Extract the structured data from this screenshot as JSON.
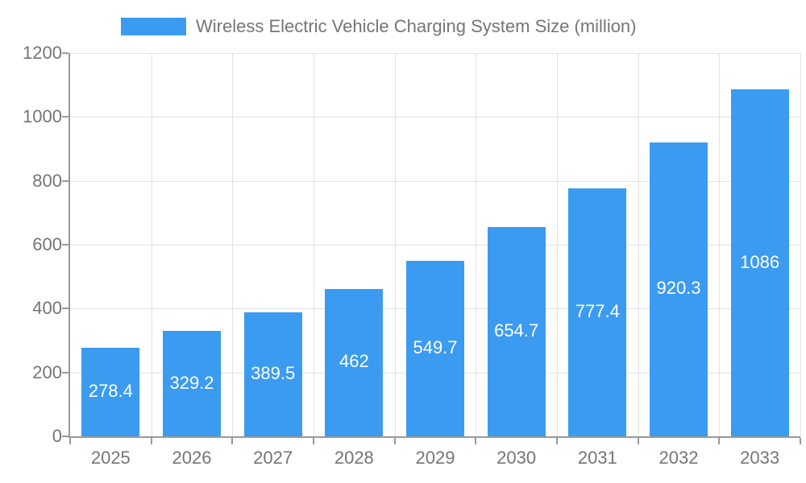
{
  "chart_data": {
    "type": "bar",
    "title": "Wireless Electric Vehicle Charging System Size (million)",
    "categories": [
      "2025",
      "2026",
      "2027",
      "2028",
      "2029",
      "2030",
      "2031",
      "2032",
      "2033"
    ],
    "values": [
      278.4,
      329.2,
      389.5,
      462,
      549.7,
      654.7,
      777.4,
      920.3,
      1086
    ],
    "value_labels": [
      "278.4",
      "329.2",
      "389.5",
      "462",
      "549.7",
      "654.7",
      "777.4",
      "920.3",
      "1086"
    ],
    "series_name": "Wireless Electric Vehicle Charging System Size (million)",
    "xlabel": "",
    "ylabel": "",
    "ylim": [
      0,
      1200
    ],
    "ytick_step": 200,
    "ytick_labels": [
      "0",
      "200",
      "400",
      "600",
      "800",
      "1000",
      "1200"
    ],
    "grid": true,
    "legend_position": "top",
    "value_label_position": "inside-center",
    "colors": {
      "bar": "#3b9bf0",
      "grid": "#e2e2e2",
      "axis": "#999999",
      "text": "#757575",
      "value_label_text": "#ffffff",
      "background": "#ffffff"
    }
  }
}
